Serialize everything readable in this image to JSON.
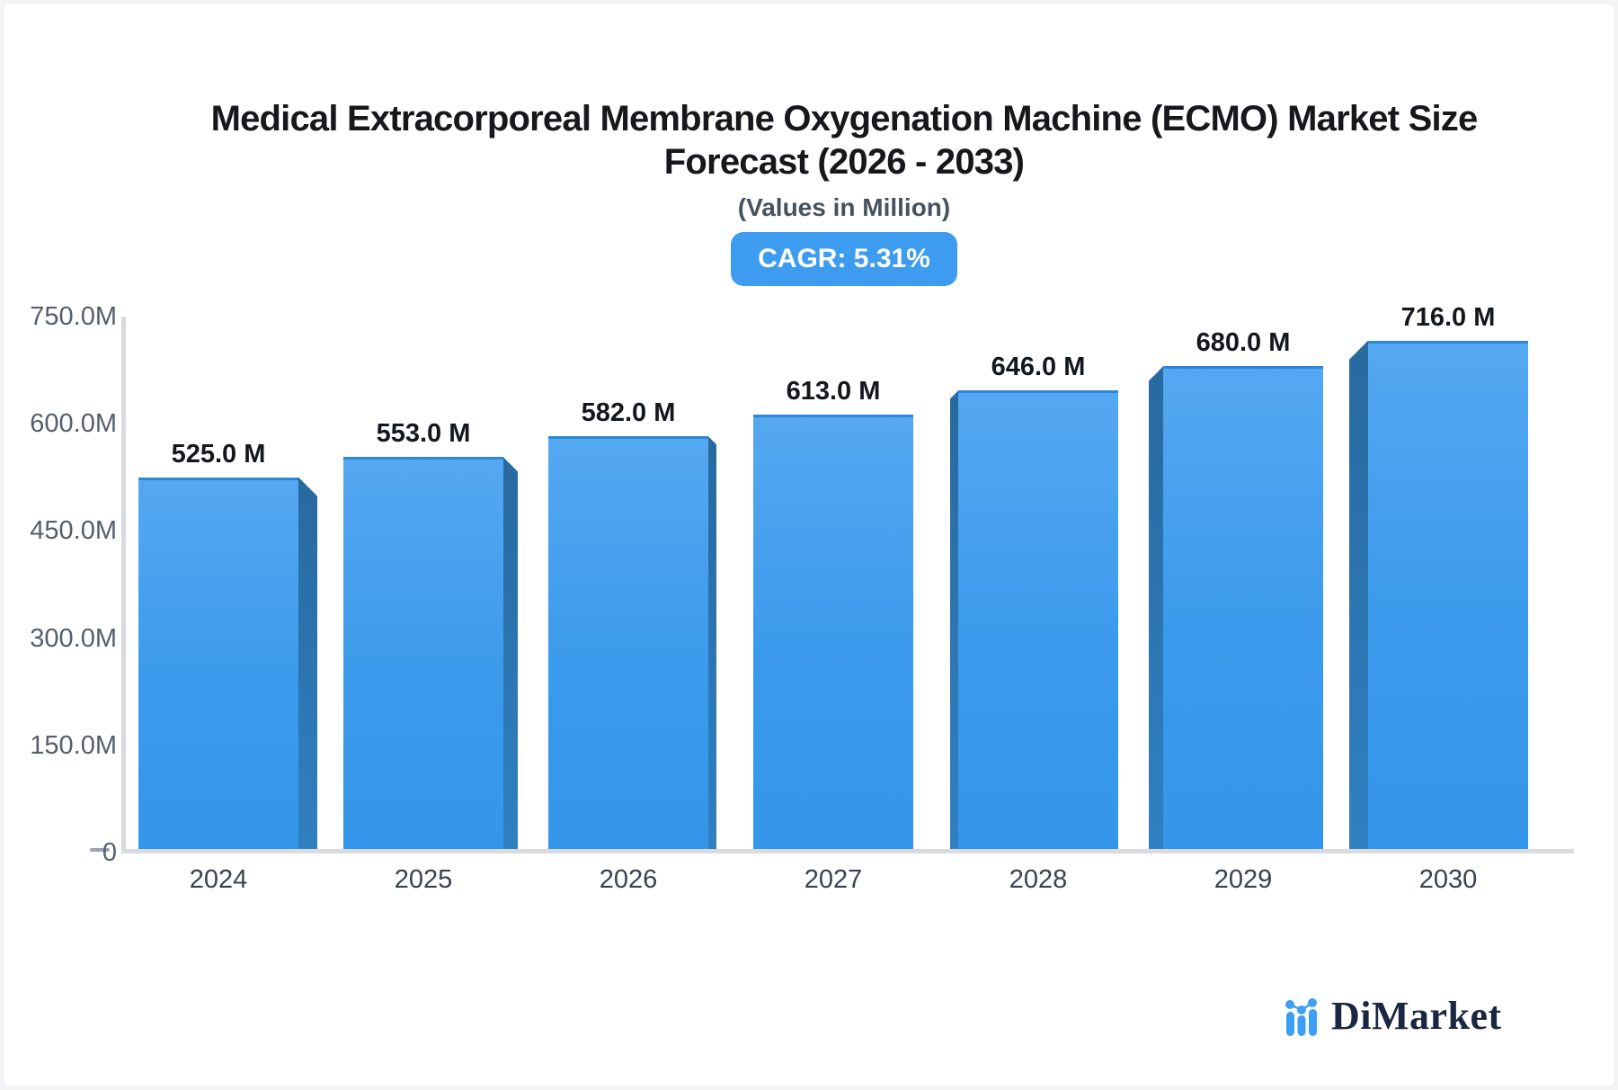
{
  "header": {
    "title_line1": "Medical Extracorporeal Membrane Oxygenation Machine (ECMO) Market Size",
    "title_line2": "Forecast (2026 - 2033)",
    "subtitle": "(Values in Million)",
    "badge": "CAGR: 5.31%"
  },
  "chart_data": {
    "type": "bar",
    "title": "Medical Extracorporeal Membrane Oxygenation Machine (ECMO) Market Size Forecast (2026 - 2033)",
    "subtitle": "(Values in Million)",
    "badge": "CAGR: 5.31%",
    "categories": [
      "2024",
      "2025",
      "2026",
      "2027",
      "2028",
      "2029",
      "2030"
    ],
    "values": [
      525,
      553,
      582,
      613,
      646,
      680,
      716
    ],
    "value_labels": [
      "525.0 M",
      "553.0 M",
      "582.0 M",
      "613.0 M",
      "646.0 M",
      "680.0 M",
      "716.0 M"
    ],
    "xlabel": "",
    "ylabel": "",
    "ylim": [
      0,
      750
    ],
    "y_tick_labels": [
      "750.0M",
      "600.0M",
      "450.0M",
      "300.0M",
      "150.0M",
      "0"
    ],
    "grid": false,
    "legend": "none",
    "style": "pseudo-3d bars, side panels face away from center bar"
  },
  "colors": {
    "bar_face_top": "#55a8f1",
    "bar_face_mid": "#3b9aec",
    "bar_face_bottom": "#3496ea",
    "bar_top_edge": "#2e86d6",
    "bar_side_top": "#28699f",
    "bar_side_bottom": "#3080c2",
    "badge_bg": "#3e9cf0",
    "axis_line": "#d9dbe0",
    "zero_tick": "#9ba1ad",
    "brand_blue": "#3d9ef5",
    "brand_navy": "#1a2742"
  },
  "brand": {
    "name": "DiMarket"
  }
}
